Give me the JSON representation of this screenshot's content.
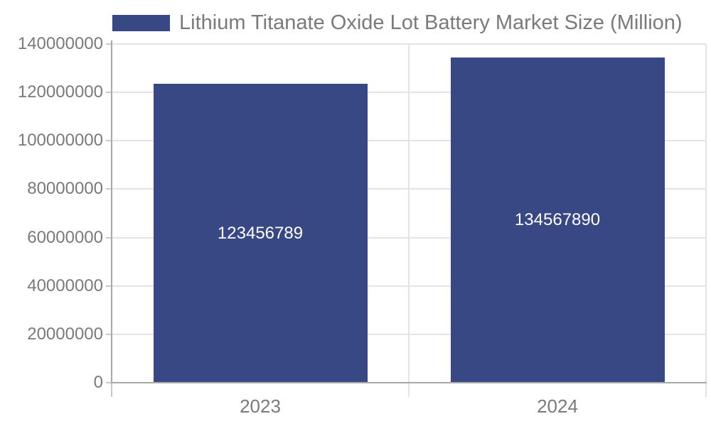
{
  "chart_data": {
    "type": "bar",
    "title": "Lithium Titanate Oxide Lot Battery Market Size (Million)",
    "categories": [
      "2023",
      "2024"
    ],
    "values": [
      123456789,
      134567890
    ],
    "value_labels": [
      "123456789",
      "134567890"
    ],
    "series": [
      {
        "name": "Lithium Titanate Oxide Lot Battery Market Size (Million)",
        "values": [
          123456789,
          134567890
        ]
      }
    ],
    "xlabel": "",
    "ylabel": "",
    "ylim": [
      0,
      140000000
    ],
    "ytick_interval": 20000000,
    "ytick_labels": [
      "0",
      "20000000",
      "40000000",
      "60000000",
      "80000000",
      "100000000",
      "120000000",
      "140000000"
    ],
    "grid": true,
    "legend_position": "top"
  },
  "colors": {
    "bar": "#384885",
    "bar_label": "#ffffff",
    "axis_line": "#a8a8a8",
    "tick_line": "#c9c9c9",
    "grid_line": "#e4e4e4",
    "text": "#7a7a7a"
  }
}
